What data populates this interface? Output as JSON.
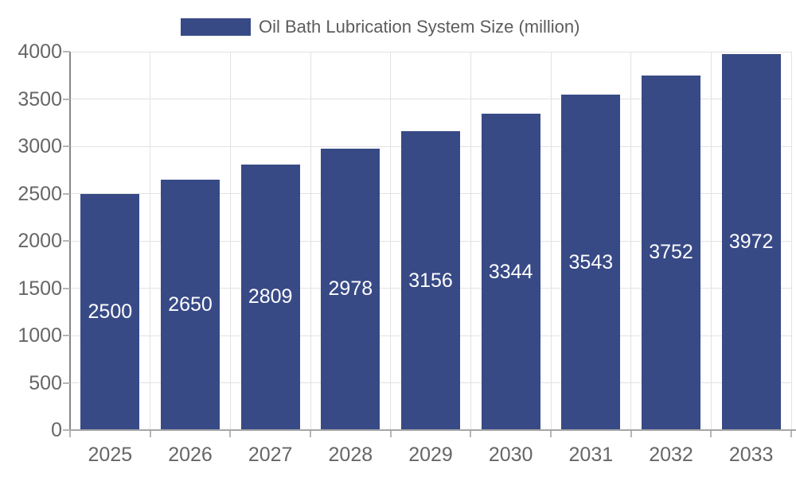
{
  "legend": {
    "label": "Oil Bath Lubrication System Size (million)",
    "swatch_color": "#384A86"
  },
  "chart_data": {
    "type": "bar",
    "title": "Oil Bath Lubrication System Size (million)",
    "categories": [
      "2025",
      "2026",
      "2027",
      "2028",
      "2029",
      "2030",
      "2031",
      "2032",
      "2033"
    ],
    "values": [
      2500,
      2650,
      2809,
      2978,
      3156,
      3344,
      3543,
      3752,
      3972
    ],
    "xlabel": "",
    "ylabel": "",
    "ylim": [
      0,
      4000
    ],
    "yticks": [
      0,
      500,
      1000,
      1500,
      2000,
      2500,
      3000,
      3500,
      4000
    ],
    "grid": true,
    "legend_position": "top-center",
    "bar_color": "#384A86",
    "bar_label_color": "#ffffff",
    "gridline_color": "#e2e2e2",
    "axis_label_color": "#666666"
  }
}
